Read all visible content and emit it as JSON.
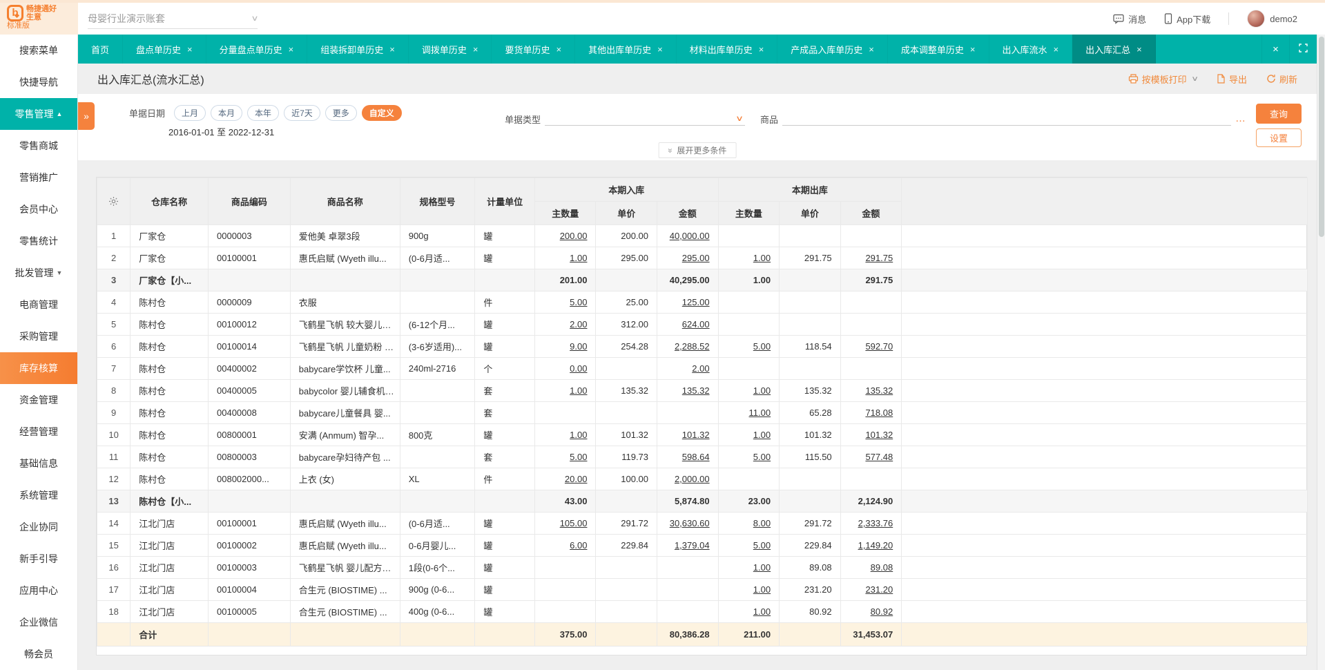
{
  "colors": {
    "teal": "#00b2a9",
    "teal_dark": "#008c85",
    "orange": "#f5823d",
    "total_row_bg": "#fdf3e0",
    "logo_bg": "#fcecdb"
  },
  "topbar": {
    "logo_text": "畅捷通好生意",
    "logo_sub": "标准版",
    "account": "母婴行业演示账套",
    "messages": "消息",
    "app_download": "App下载",
    "username": "demo2"
  },
  "tabbar": {
    "tabs": [
      {
        "label": "首页",
        "closable": false,
        "active": false
      },
      {
        "label": "盘点单历史",
        "closable": true,
        "active": false
      },
      {
        "label": "分量盘点单历史",
        "closable": true,
        "active": false
      },
      {
        "label": "组装拆卸单历史",
        "closable": true,
        "active": false
      },
      {
        "label": "调拨单历史",
        "closable": true,
        "active": false
      },
      {
        "label": "要货单历史",
        "closable": true,
        "active": false
      },
      {
        "label": "其他出库单历史",
        "closable": true,
        "active": false
      },
      {
        "label": "材料出库单历史",
        "closable": true,
        "active": false
      },
      {
        "label": "产成品入库单历史",
        "closable": true,
        "active": false
      },
      {
        "label": "成本调整单历史",
        "closable": true,
        "active": false
      },
      {
        "label": "出入库流水",
        "closable": true,
        "active": false
      },
      {
        "label": "出入库汇总",
        "closable": true,
        "active": true
      }
    ]
  },
  "page": {
    "title": "出入库汇总(流水汇总)",
    "print": "按模板打印",
    "export": "导出",
    "refresh": "刷新"
  },
  "filters": {
    "date_label": "单据日期",
    "date_pills": [
      "上月",
      "本月",
      "本年",
      "近7天",
      "更多"
    ],
    "custom_pill": "自定义",
    "date_range": "2016-01-01 至 2022-12-31",
    "doc_type_label": "单据类型",
    "product_label": "商品",
    "search": "查询",
    "settings": "设置",
    "expand_more": "展开更多条件"
  },
  "sidebar": {
    "items": [
      {
        "label": "搜索菜单",
        "state": "",
        "chevron": ""
      },
      {
        "label": "快捷导航",
        "state": "",
        "chevron": ""
      },
      {
        "label": "零售管理",
        "state": "teal",
        "chevron": "up"
      },
      {
        "label": "零售商城",
        "state": "",
        "chevron": ""
      },
      {
        "label": "营销推广",
        "state": "",
        "chevron": ""
      },
      {
        "label": "会员中心",
        "state": "",
        "chevron": ""
      },
      {
        "label": "零售统计",
        "state": "",
        "chevron": ""
      },
      {
        "label": "批发管理",
        "state": "",
        "chevron": "down"
      },
      {
        "label": "电商管理",
        "state": "",
        "chevron": ""
      },
      {
        "label": "采购管理",
        "state": "",
        "chevron": ""
      },
      {
        "label": "库存核算",
        "state": "orange",
        "chevron": ""
      },
      {
        "label": "资金管理",
        "state": "",
        "chevron": ""
      },
      {
        "label": "经营管理",
        "state": "",
        "chevron": ""
      },
      {
        "label": "基础信息",
        "state": "",
        "chevron": ""
      },
      {
        "label": "系统管理",
        "state": "",
        "chevron": ""
      },
      {
        "label": "企业协同",
        "state": "",
        "chevron": ""
      },
      {
        "label": "新手引导",
        "state": "",
        "chevron": ""
      },
      {
        "label": "应用中心",
        "state": "",
        "chevron": ""
      },
      {
        "label": "企业微信",
        "state": "",
        "chevron": ""
      },
      {
        "label": "畅会员",
        "state": "",
        "chevron": ""
      }
    ]
  },
  "table": {
    "columns": {
      "warehouse": "仓库名称",
      "code": "商品编码",
      "name": "商品名称",
      "spec": "规格型号",
      "unit": "计量单位",
      "group_in": "本期入库",
      "group_out": "本期出库",
      "qty": "主数量",
      "price": "单价",
      "amount": "金额"
    },
    "rows": [
      {
        "n": "1",
        "type": "data",
        "warehouse": "厂家仓",
        "code": "0000003",
        "name": "爱他美 卓翠3段",
        "spec": "900g",
        "unit": "罐",
        "in_qty": "200.00",
        "in_price": "200.00",
        "in_amt": "40,000.00",
        "out_qty": "",
        "out_price": "",
        "out_amt": ""
      },
      {
        "n": "2",
        "type": "data",
        "warehouse": "厂家仓",
        "code": "00100001",
        "name": "惠氏启赋 (Wyeth illu...",
        "spec": "(0-6月适...",
        "unit": "罐",
        "in_qty": "1.00",
        "in_price": "295.00",
        "in_amt": "295.00",
        "out_qty": "1.00",
        "out_price": "291.75",
        "out_amt": "291.75"
      },
      {
        "n": "3",
        "type": "subtotal",
        "warehouse": "厂家仓【小...",
        "code": "",
        "name": "",
        "spec": "",
        "unit": "",
        "in_qty": "201.00",
        "in_price": "",
        "in_amt": "40,295.00",
        "out_qty": "1.00",
        "out_price": "",
        "out_amt": "291.75"
      },
      {
        "n": "4",
        "type": "data",
        "warehouse": "陈村仓",
        "code": "0000009",
        "name": "衣服",
        "spec": "",
        "unit": "件",
        "in_qty": "5.00",
        "in_price": "25.00",
        "in_amt": "125.00",
        "out_qty": "",
        "out_price": "",
        "out_amt": ""
      },
      {
        "n": "5",
        "type": "data",
        "warehouse": "陈村仓",
        "code": "00100012",
        "name": "飞鹤星飞帆 较大婴儿配...",
        "spec": "(6-12个月...",
        "unit": "罐",
        "in_qty": "2.00",
        "in_price": "312.00",
        "in_amt": "624.00",
        "out_qty": "",
        "out_price": "",
        "out_amt": ""
      },
      {
        "n": "6",
        "type": "data",
        "warehouse": "陈村仓",
        "code": "00100014",
        "name": "飞鹤星飞帆 儿童奶粉 4...",
        "spec": "(3-6岁适用)...",
        "unit": "罐",
        "in_qty": "9.00",
        "in_price": "254.28",
        "in_amt": "2,288.52",
        "out_qty": "5.00",
        "out_price": "118.54",
        "out_amt": "592.70"
      },
      {
        "n": "7",
        "type": "data",
        "warehouse": "陈村仓",
        "code": "00400002",
        "name": "babycare学饮杯 儿童...",
        "spec": "240ml-2716",
        "unit": "个",
        "in_qty": "0.00",
        "in_price": "",
        "in_amt": "2.00",
        "out_qty": "",
        "out_price": "",
        "out_amt": ""
      },
      {
        "n": "8",
        "type": "data",
        "warehouse": "陈村仓",
        "code": "00400005",
        "name": "babycolor 婴儿辅食机 ...",
        "spec": "",
        "unit": "套",
        "in_qty": "1.00",
        "in_price": "135.32",
        "in_amt": "135.32",
        "out_qty": "1.00",
        "out_price": "135.32",
        "out_amt": "135.32"
      },
      {
        "n": "9",
        "type": "data",
        "warehouse": "陈村仓",
        "code": "00400008",
        "name": "babycare儿童餐具 婴...",
        "spec": "",
        "unit": "套",
        "in_qty": "",
        "in_price": "",
        "in_amt": "",
        "out_qty": "11.00",
        "out_price": "65.28",
        "out_amt": "718.08"
      },
      {
        "n": "10",
        "type": "data",
        "warehouse": "陈村仓",
        "code": "00800001",
        "name": "安满 (Anmum) 智孕...",
        "spec": "800克",
        "unit": "罐",
        "in_qty": "1.00",
        "in_price": "101.32",
        "in_amt": "101.32",
        "out_qty": "1.00",
        "out_price": "101.32",
        "out_amt": "101.32"
      },
      {
        "n": "11",
        "type": "data",
        "warehouse": "陈村仓",
        "code": "00800003",
        "name": "babycare孕妇待产包 ...",
        "spec": "",
        "unit": "套",
        "in_qty": "5.00",
        "in_price": "119.73",
        "in_amt": "598.64",
        "out_qty": "5.00",
        "out_price": "115.50",
        "out_amt": "577.48"
      },
      {
        "n": "12",
        "type": "data",
        "warehouse": "陈村仓",
        "code": "008002000...",
        "name": "上衣 (女)",
        "spec": "XL",
        "unit": "件",
        "in_qty": "20.00",
        "in_price": "100.00",
        "in_amt": "2,000.00",
        "out_qty": "",
        "out_price": "",
        "out_amt": ""
      },
      {
        "n": "13",
        "type": "subtotal",
        "warehouse": "陈村仓【小...",
        "code": "",
        "name": "",
        "spec": "",
        "unit": "",
        "in_qty": "43.00",
        "in_price": "",
        "in_amt": "5,874.80",
        "out_qty": "23.00",
        "out_price": "",
        "out_amt": "2,124.90"
      },
      {
        "n": "14",
        "type": "data",
        "warehouse": "江北门店",
        "code": "00100001",
        "name": "惠氏启赋 (Wyeth illu...",
        "spec": "(0-6月适...",
        "unit": "罐",
        "in_qty": "105.00",
        "in_price": "291.72",
        "in_amt": "30,630.60",
        "out_qty": "8.00",
        "out_price": "291.72",
        "out_amt": "2,333.76"
      },
      {
        "n": "15",
        "type": "data",
        "warehouse": "江北门店",
        "code": "00100002",
        "name": "惠氏启赋 (Wyeth illu...",
        "spec": "0-6月婴儿...",
        "unit": "罐",
        "in_qty": "6.00",
        "in_price": "229.84",
        "in_amt": "1,379.04",
        "out_qty": "5.00",
        "out_price": "229.84",
        "out_amt": "1,149.20"
      },
      {
        "n": "16",
        "type": "data",
        "warehouse": "江北门店",
        "code": "00100003",
        "name": "飞鹤星飞帆 婴儿配方奶...",
        "spec": "1段(0-6个...",
        "unit": "罐",
        "in_qty": "",
        "in_price": "",
        "in_amt": "",
        "out_qty": "1.00",
        "out_price": "89.08",
        "out_amt": "89.08"
      },
      {
        "n": "17",
        "type": "data",
        "warehouse": "江北门店",
        "code": "00100004",
        "name": "合生元 (BIOSTIME) ...",
        "spec": "900g (0-6...",
        "unit": "罐",
        "in_qty": "",
        "in_price": "",
        "in_amt": "",
        "out_qty": "1.00",
        "out_price": "231.20",
        "out_amt": "231.20"
      },
      {
        "n": "18",
        "type": "data",
        "warehouse": "江北门店",
        "code": "00100005",
        "name": "合生元 (BIOSTIME) ...",
        "spec": "400g (0-6...",
        "unit": "罐",
        "in_qty": "",
        "in_price": "",
        "in_amt": "",
        "out_qty": "1.00",
        "out_price": "80.92",
        "out_amt": "80.92"
      }
    ],
    "total": {
      "label": "合计",
      "in_qty": "375.00",
      "in_amt": "80,386.28",
      "out_qty": "211.00",
      "out_amt": "31,453.07"
    }
  }
}
